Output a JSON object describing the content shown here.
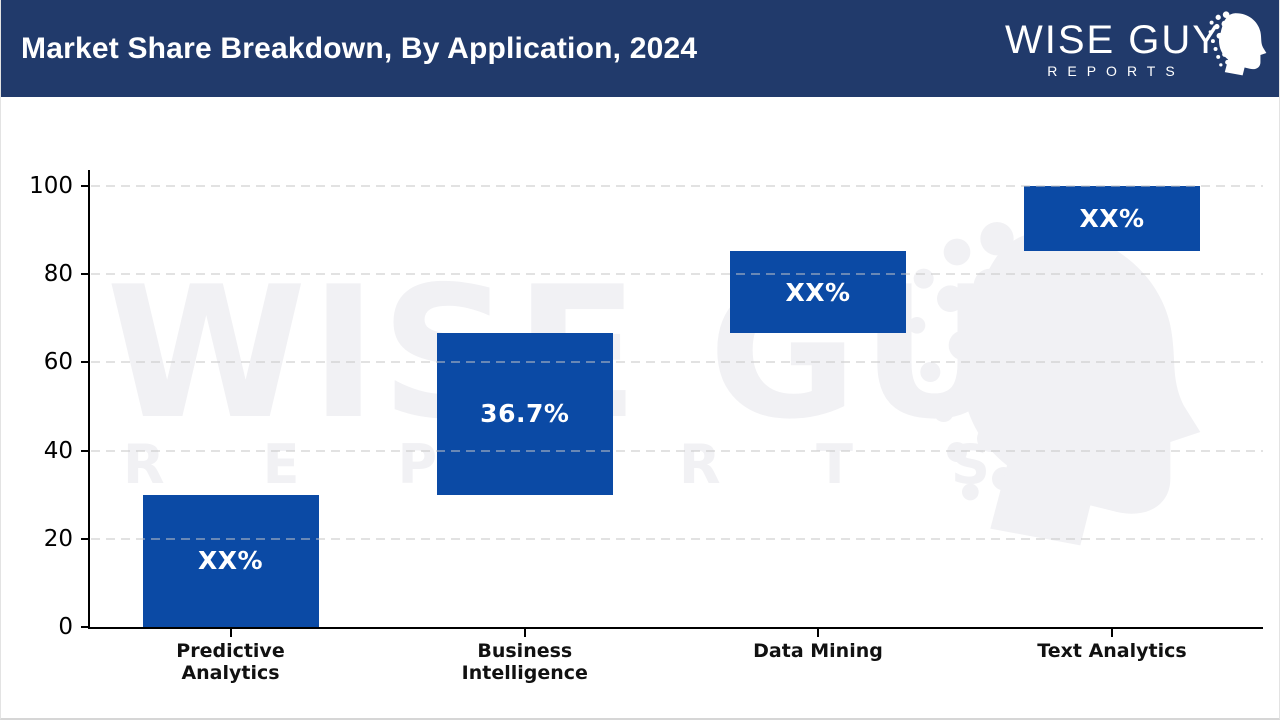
{
  "header": {
    "title": "Market Share Breakdown, By Application, 2024",
    "logo": {
      "name": "WISE GUY",
      "sub": "REPORTS"
    }
  },
  "watermark": {
    "name": "WISE GUY",
    "sub": "REPORTS"
  },
  "chart_data": {
    "type": "bar",
    "variant": "floating-stacked-breakdown",
    "title": "Market Share Breakdown, By Application, 2024",
    "categories": [
      "Predictive Analytics",
      "Business Intelligence",
      "Data Mining",
      "Text Analytics"
    ],
    "segments": [
      {
        "category": "Predictive Analytics",
        "category_lines": [
          "Predictive",
          "Analytics"
        ],
        "start": 0,
        "end": 30.0,
        "value_label": "XX%"
      },
      {
        "category": "Business Intelligence",
        "category_lines": [
          "Business",
          "Intelligence"
        ],
        "start": 30.0,
        "end": 66.7,
        "value_label": "36.7%"
      },
      {
        "category": "Data Mining",
        "category_lines": [
          "Data Mining"
        ],
        "start": 66.7,
        "end": 85.2,
        "value_label": "XX%"
      },
      {
        "category": "Text Analytics",
        "category_lines": [
          "Text Analytics"
        ],
        "start": 85.2,
        "end": 100,
        "value_label": "XX%"
      }
    ],
    "yticks": [
      0,
      20,
      40,
      60,
      80,
      100
    ],
    "ylim": [
      0,
      104
    ],
    "xlabel": "",
    "ylabel": "",
    "grid": "dashed-horizontal",
    "legend": "none",
    "colors": {
      "bar": "#0b4aa5",
      "header_bg": "#213a6b",
      "grid": "#e0e0e0",
      "axis": "#000000",
      "watermark": "#f1f1f4"
    }
  }
}
